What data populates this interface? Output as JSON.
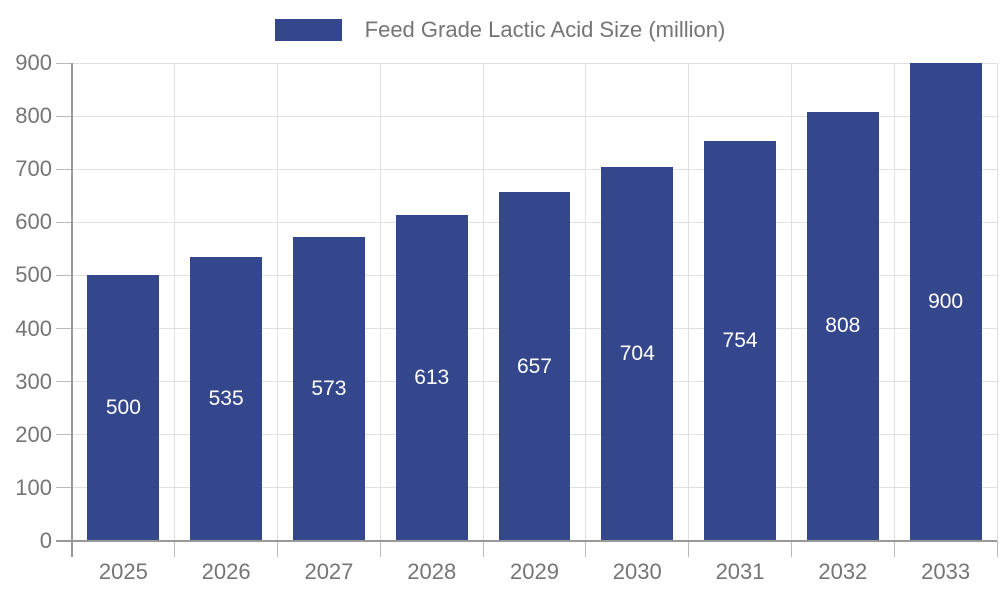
{
  "chart_data": {
    "type": "bar",
    "title": "Feed Grade Lactic Acid Size (million)",
    "legend_position": "top",
    "categories": [
      "2025",
      "2026",
      "2027",
      "2028",
      "2029",
      "2030",
      "2031",
      "2032",
      "2033"
    ],
    "series": [
      {
        "name": "Feed Grade Lactic Acid Size (million)",
        "values": [
          500,
          535,
          573,
          613,
          657,
          704,
          754,
          808,
          900
        ]
      }
    ],
    "xlabel": "",
    "ylabel": "",
    "ylim": [
      0,
      900
    ],
    "ytick_interval": 100,
    "grid": true,
    "value_labels": "inside-center",
    "colors": {
      "bar": "#35478C",
      "value_label": "#FFFFFF",
      "tick_label": "#757575",
      "legend_text": "#757575",
      "axis_line": "#999999",
      "gridline": "#E0E0E0",
      "tick_mark": "#BBBBBB",
      "background": "#FFFFFF"
    }
  }
}
